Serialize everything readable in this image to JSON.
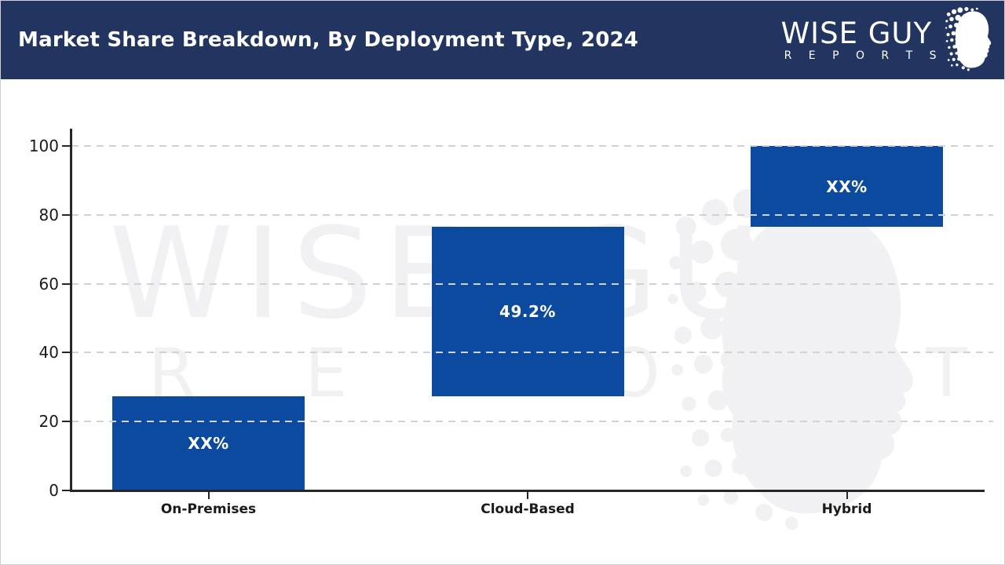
{
  "header": {
    "title": "Market Share Breakdown, By Deployment Type, 2024",
    "brand": {
      "line1": "WISE GUY",
      "line2": "R E P O R T S",
      "face_icon": "dotted-face-profile-icon"
    }
  },
  "watermark": {
    "line1": "WISE GUY",
    "line2": "R E P O R T S"
  },
  "colors": {
    "header_bg": "#223560",
    "title_text": "#ffffff",
    "bar": "#0b4a9e",
    "bar_label": "#ffffff",
    "axis": "#262626",
    "grid": "#d2d2d2",
    "tick_text": "#1a1a1a",
    "watermark": "#f1f1f4",
    "canvas_border": "#cfcfcf"
  },
  "chart_data": {
    "type": "bar",
    "variant": "floating-stacked-waterfall",
    "title": "Market Share Breakdown, By Deployment Type, 2024",
    "categories": [
      "On-Premises",
      "Cloud-Based",
      "Hybrid"
    ],
    "segments": [
      {
        "category": "On-Premises",
        "label": "XX%",
        "base": 0,
        "top": 27.3,
        "height_est_pct": 27.3
      },
      {
        "category": "Cloud-Based",
        "label": "49.2%",
        "base": 27.3,
        "top": 76.5,
        "height_est_pct": 49.2
      },
      {
        "category": "Hybrid",
        "label": "XX%",
        "base": 76.5,
        "top": 100,
        "height_est_pct": 23.5
      }
    ],
    "y_ticks": [
      0,
      20,
      40,
      60,
      80,
      100
    ],
    "ylim": [
      0,
      105
    ],
    "xlabel": "",
    "ylabel": "",
    "grid": "horizontal-dashed",
    "legend": "none",
    "bar_color": "#0b4a9e"
  }
}
